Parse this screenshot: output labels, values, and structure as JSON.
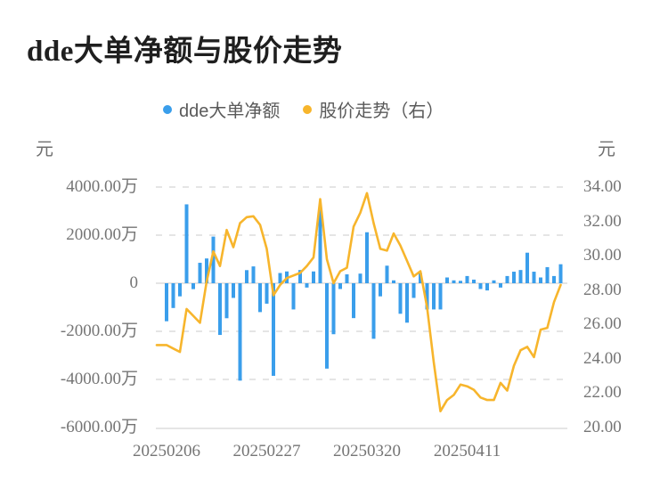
{
  "title": "dde大单净额与股价走势",
  "legend": {
    "items": [
      {
        "label": "dde大单净额",
        "color": "#3A9EEB",
        "marker": "circle"
      },
      {
        "label": "股价走势（右）",
        "color": "#F7B52C",
        "marker": "circle"
      }
    ]
  },
  "colors": {
    "bar_blue": "#3A9EEB",
    "line_orange": "#F7B52C",
    "grid": "#E5E5E5",
    "axis_text": "#757575",
    "legend_text": "#5A5A5A",
    "title_text": "#1F1F1F"
  },
  "chart_data": {
    "type": "combo",
    "subtype": [
      "bar",
      "line"
    ],
    "title": "dde大单净额与股价走势",
    "point_count": 60,
    "x_ticks": [
      {
        "label": "20250206",
        "index": 0
      },
      {
        "label": "20250227",
        "index": 15
      },
      {
        "label": "20250320",
        "index": 30
      },
      {
        "label": "20250411",
        "index": 45
      }
    ],
    "left_axis": {
      "unit": "元",
      "tick_labels": [
        "4000.00万",
        "2000.00万",
        "0",
        "-2000.00万",
        "-4000.00万",
        "-6000.00万"
      ],
      "tick_values_wan": [
        4000,
        2000,
        0,
        -2000,
        -4000,
        -6000
      ],
      "range_wan": [
        -6000,
        4000
      ],
      "grid": "dashed"
    },
    "right_axis": {
      "unit": "元",
      "tick_labels": [
        "34.00",
        "32.00",
        "30.00",
        "28.00",
        "26.00",
        "24.00",
        "22.00",
        "20.00"
      ],
      "tick_values": [
        34,
        32,
        30,
        28,
        26,
        24,
        22,
        20
      ],
      "range": [
        20,
        34
      ]
    },
    "series": [
      {
        "name": "dde大单净额",
        "type": "bar",
        "axis": "left",
        "unit": "万元",
        "color": "#3A9EEB",
        "values_wan": [
          -1580,
          -1030,
          -545,
          3280,
          -245,
          850,
          1030,
          1940,
          -2150,
          -1455,
          -610,
          -4050,
          545,
          700,
          -1200,
          -850,
          -3850,
          425,
          490,
          -1090,
          550,
          -180,
          490,
          3250,
          -3550,
          -2120,
          -240,
          370,
          -1450,
          400,
          2120,
          -2310,
          -545,
          730,
          120,
          -1270,
          -1640,
          -610,
          420,
          -1090,
          -1090,
          -1090,
          240,
          120,
          100,
          300,
          150,
          -240,
          -300,
          120,
          -180,
          300,
          480,
          550,
          1270,
          480,
          240,
          670,
          300,
          790
        ]
      },
      {
        "name": "股价走势（右）",
        "type": "line",
        "axis": "right",
        "unit": "元",
        "color": "#F7B52C",
        "values": [
          24.8,
          24.6,
          24.4,
          26.9,
          26.5,
          26.1,
          28.5,
          30.25,
          29.4,
          31.5,
          30.5,
          31.9,
          32.25,
          32.3,
          31.8,
          30.4,
          27.7,
          28.3,
          28.7,
          28.85,
          29.0,
          29.4,
          29.9,
          33.3,
          29.8,
          28.4,
          29.1,
          29.3,
          31.7,
          32.5,
          33.65,
          31.9,
          30.4,
          30.3,
          31.3,
          30.6,
          29.7,
          28.8,
          29.1,
          27.0,
          23.8,
          20.95,
          21.6,
          21.9,
          22.5,
          22.4,
          22.2,
          21.75,
          21.6,
          21.6,
          22.6,
          22.15,
          23.6,
          24.5,
          24.7,
          24.1,
          25.7,
          25.8,
          27.3,
          28.3
        ]
      }
    ]
  }
}
